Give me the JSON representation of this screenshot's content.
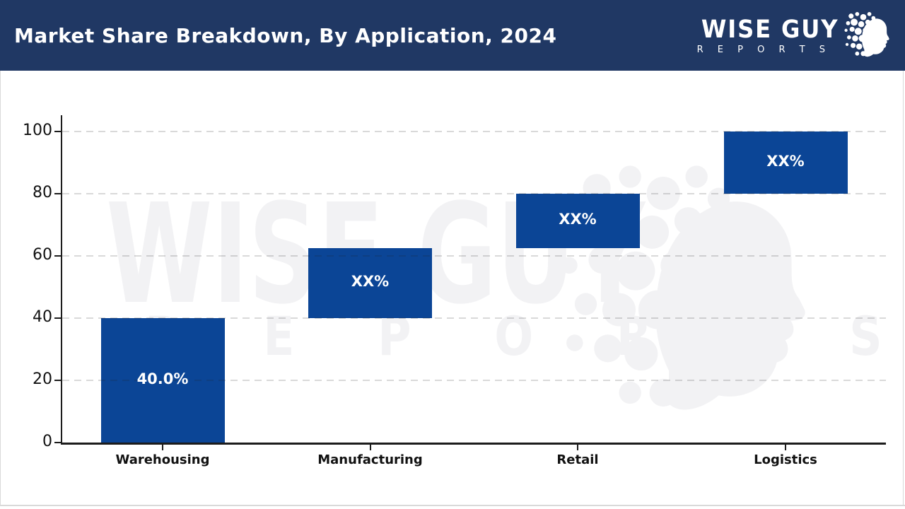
{
  "header": {
    "title": "Market Share Breakdown, By Application, 2024",
    "bg_color": "#203864",
    "logo": {
      "line1": "WISE GUY",
      "line2": "R E P O R T S"
    }
  },
  "watermark": {
    "line1": "WISE GUY",
    "line2": "R E P O R T S"
  },
  "chart_data": {
    "type": "bar",
    "subtype": "waterfall",
    "title": "Market Share Breakdown, By Application, 2024",
    "categories": [
      "Warehousing",
      "Manufacturing",
      "Retail",
      "Logistics"
    ],
    "segments": [
      {
        "category": "Warehousing",
        "start": 0,
        "end": 40,
        "label": "40.0%"
      },
      {
        "category": "Manufacturing",
        "start": 40,
        "end": 62.5,
        "label": "XX%"
      },
      {
        "category": "Retail",
        "start": 62.5,
        "end": 80,
        "label": "XX%"
      },
      {
        "category": "Logistics",
        "start": 80,
        "end": 100,
        "label": "XX%"
      }
    ],
    "y_ticks": [
      0,
      20,
      40,
      60,
      80,
      100
    ],
    "ylim": [
      0,
      100
    ],
    "xlabel": "",
    "ylabel": "",
    "grid": "horizontal-dashed",
    "legend": "none",
    "bar_color": "#0b4596",
    "bar_label_color": "#ffffff",
    "grid_color": "rgba(30,30,30,0.17)"
  }
}
